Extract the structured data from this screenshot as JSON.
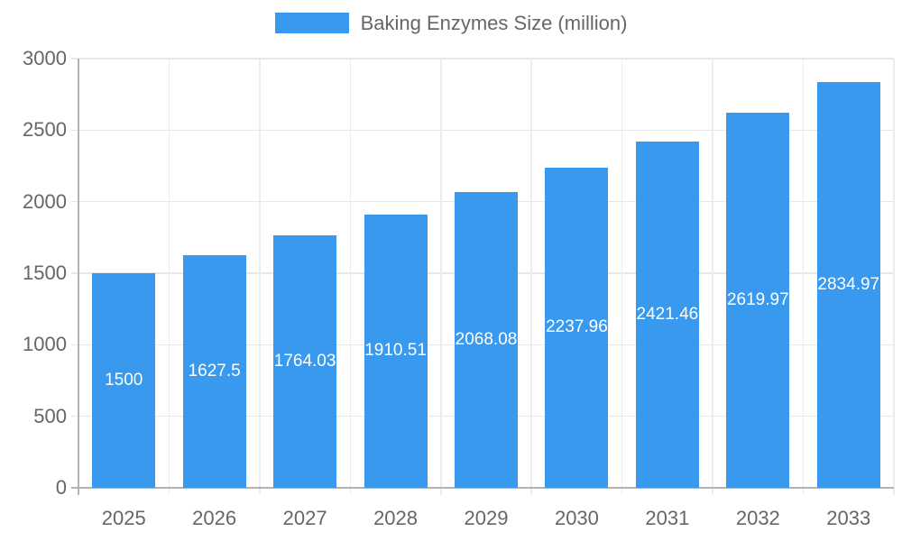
{
  "page": {
    "background": "#ffffff"
  },
  "legend": {
    "label": "Baking Enzymes Size (million)",
    "swatch_color": "#3999ee"
  },
  "chart_data": {
    "type": "bar",
    "title": "Baking Enzymes Size (million)",
    "series_name": "Baking Enzymes Size (million)",
    "categories": [
      "2025",
      "2026",
      "2027",
      "2028",
      "2029",
      "2030",
      "2031",
      "2032",
      "2033"
    ],
    "values": [
      1500,
      1627.5,
      1764.03,
      1910.51,
      2068.08,
      2237.96,
      2421.46,
      2619.97,
      2834.97
    ],
    "value_labels": [
      "1500",
      "1627.5",
      "1764.03",
      "1910.51",
      "2068.08",
      "2237.96",
      "2421.46",
      "2619.97",
      "2834.97"
    ],
    "xlabel": "",
    "ylabel": "",
    "ylim": [
      0,
      3000
    ],
    "yticks": [
      0,
      500,
      1000,
      1500,
      2000,
      2500,
      3000
    ],
    "grid": true,
    "legend_position": "top",
    "bar_color": "#3999ee",
    "value_label_color": "#ffffff",
    "axis_text_color": "#666666",
    "grid_color_h": "#e7e7e7",
    "grid_color_v": "#ededed",
    "axis_line_color": "#b3b3b3"
  }
}
